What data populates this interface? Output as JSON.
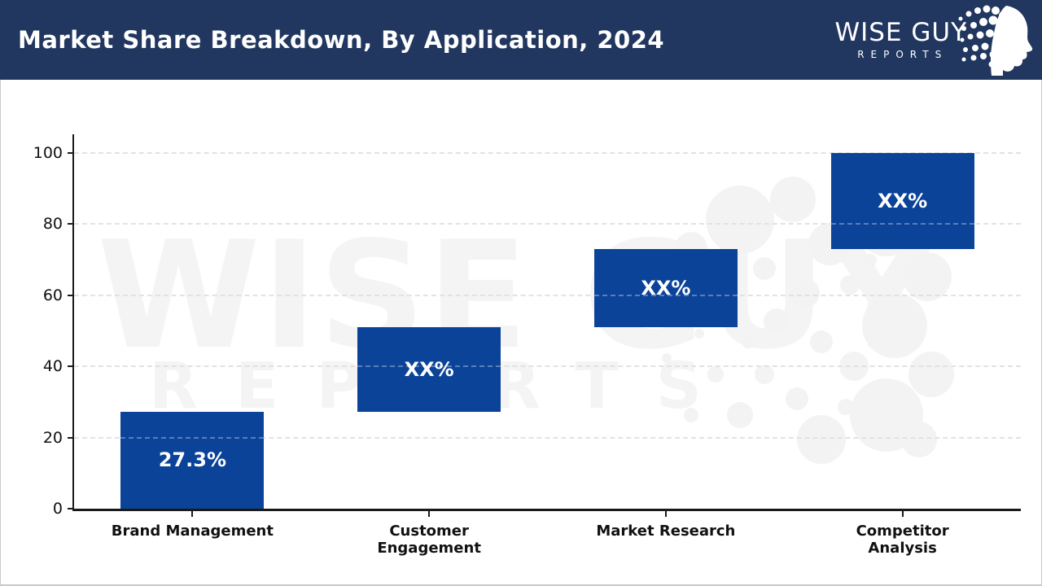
{
  "header": {
    "title": "Market Share Breakdown, By Application, 2024",
    "logo": {
      "line1": "WISE GUY",
      "line2": "REPORTS"
    }
  },
  "watermark": {
    "line1": "WISE GUY",
    "line2": "REPORTS"
  },
  "colors": {
    "header_bg": "#213760",
    "bar": "#0b4399",
    "grid": "#e2e2e2",
    "axis": "#1a1a1a",
    "title_text": "#ffffff",
    "watermark": "#f4f4f4"
  },
  "chart_data": {
    "type": "bar",
    "subtype": "waterfall",
    "title": "Market Share Breakdown, By Application, 2024",
    "categories": [
      "Brand Management",
      "Customer Engagement",
      "Market Research",
      "Competitor Analysis"
    ],
    "category_label_lines": [
      [
        "Brand Management"
      ],
      [
        "Customer",
        "Engagement"
      ],
      [
        "Market Research"
      ],
      [
        "Competitor",
        "Analysis"
      ]
    ],
    "segments": [
      {
        "category": "Brand Management",
        "start": 0,
        "end": 27.3,
        "label": "27.3%"
      },
      {
        "category": "Customer Engagement",
        "start": 27.3,
        "end": 51.1,
        "label": "XX%"
      },
      {
        "category": "Market Research",
        "start": 51.1,
        "end": 73.0,
        "label": "XX%"
      },
      {
        "category": "Competitor Analysis",
        "start": 73.0,
        "end": 100,
        "label": "XX%"
      }
    ],
    "yticks": [
      0,
      20,
      40,
      60,
      80,
      100
    ],
    "ylim": [
      0,
      104
    ],
    "xlabel": "",
    "ylabel": "",
    "grid": "dashed-horizontal",
    "legend": null,
    "values_masked_note": "Bars 2-4 display XX% placeholders in the source image"
  }
}
